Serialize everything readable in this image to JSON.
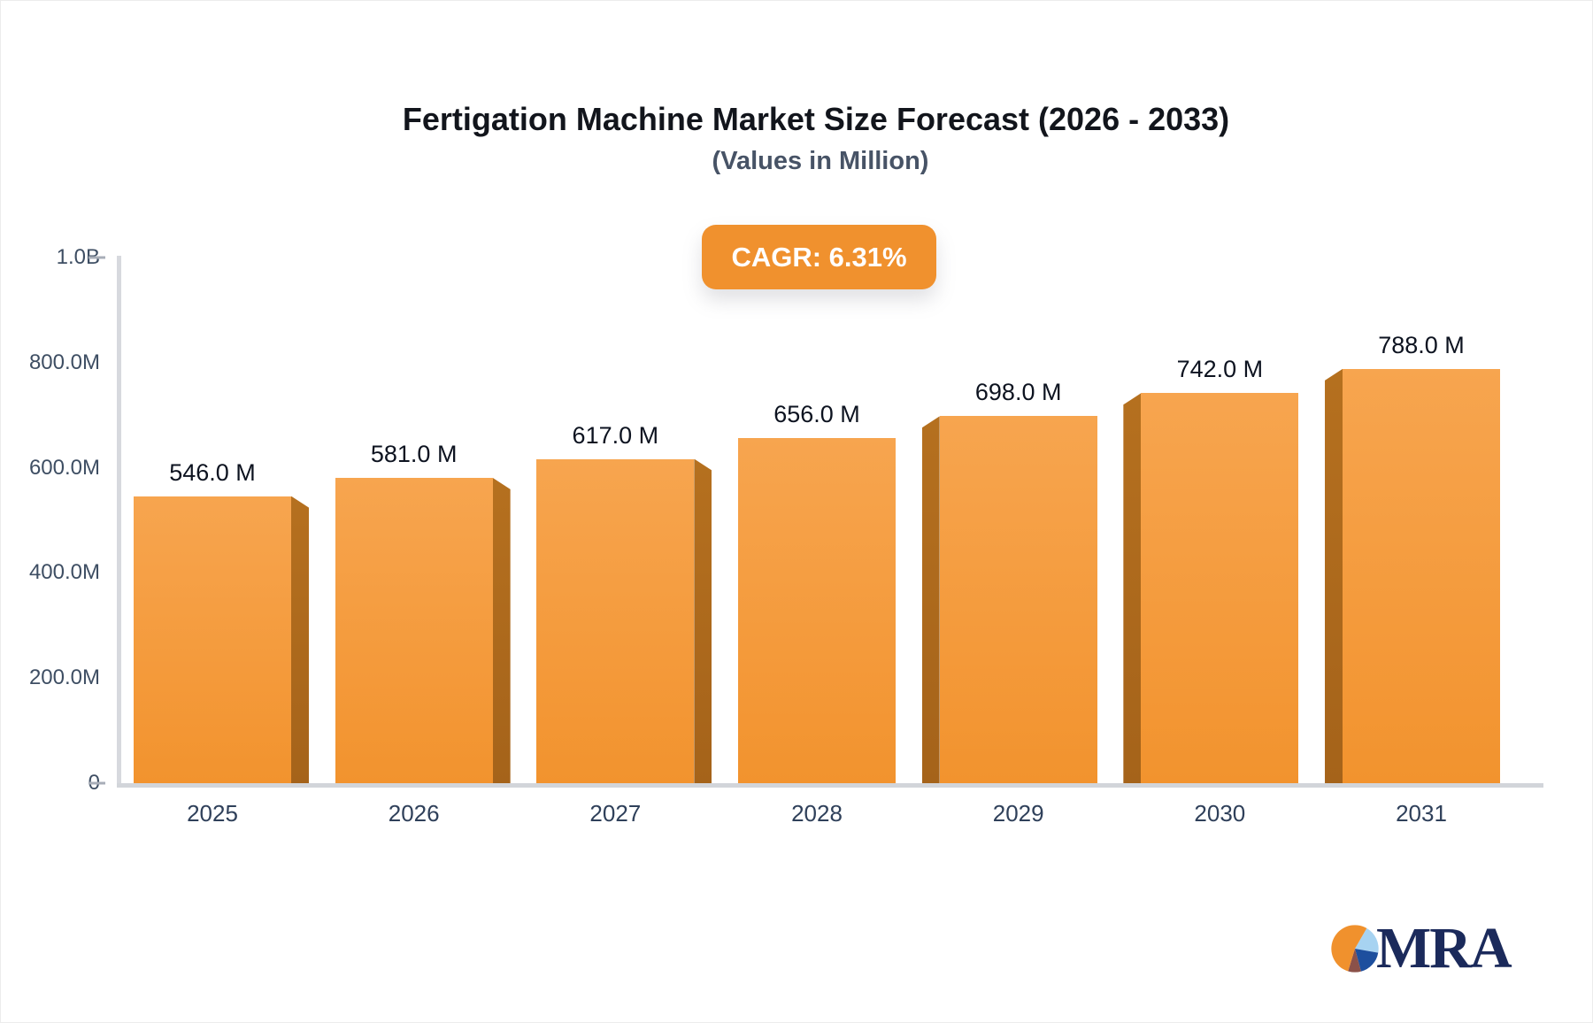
{
  "title": "Fertigation Machine Market Size Forecast (2026 - 2033)",
  "subtitle": "(Values in Million)",
  "badge": {
    "label": "CAGR: 6.31%",
    "cagr_value": "6.31%",
    "bg_color": "#F0912E",
    "text_color": "#ffffff"
  },
  "chart_data": {
    "type": "bar",
    "title": "Fertigation Machine Market Size Forecast (2026 - 2033)",
    "subtitle": "(Values in Million)",
    "categories": [
      "2025",
      "2026",
      "2027",
      "2028",
      "2029",
      "2030",
      "2031"
    ],
    "values": [
      546,
      581,
      617,
      656,
      698,
      742,
      788
    ],
    "bar_labels": [
      "546.0 M",
      "581.0 M",
      "617.0 M",
      "656.0 M",
      "698.0 M",
      "742.0 M",
      "788.0 M"
    ],
    "unit": "Million",
    "xlabel": "",
    "ylabel": "",
    "ylim": [
      0,
      1000
    ],
    "y_ticks": [
      {
        "label": "1.0B",
        "value": 1000
      },
      {
        "label": "800.0M",
        "value": 800
      },
      {
        "label": "600.0M",
        "value": 600
      },
      {
        "label": "400.0M",
        "value": 400
      },
      {
        "label": "200.0M",
        "value": 200
      },
      {
        "label": "0",
        "value": 0
      }
    ],
    "grid": false,
    "legend_position": "none",
    "bar_color_top": "#F7A54F",
    "bar_color_bottom": "#F2932E",
    "bar_side_color_top": "#B5701F",
    "bar_side_color_bottom": "#A5631A",
    "axis_line_color": "#D7D9DE",
    "effect": "3d-extruded-bars, side shading faces chart center"
  },
  "logo": {
    "text": "MRA",
    "icon": "pie-chart-icon",
    "pie_slice_colors": {
      "orange": "#F0912D",
      "light_blue": "#A7D3F1",
      "navy": "#1D4F9E",
      "maroon": "#8B5149"
    },
    "text_color": "#1B2A5B"
  }
}
